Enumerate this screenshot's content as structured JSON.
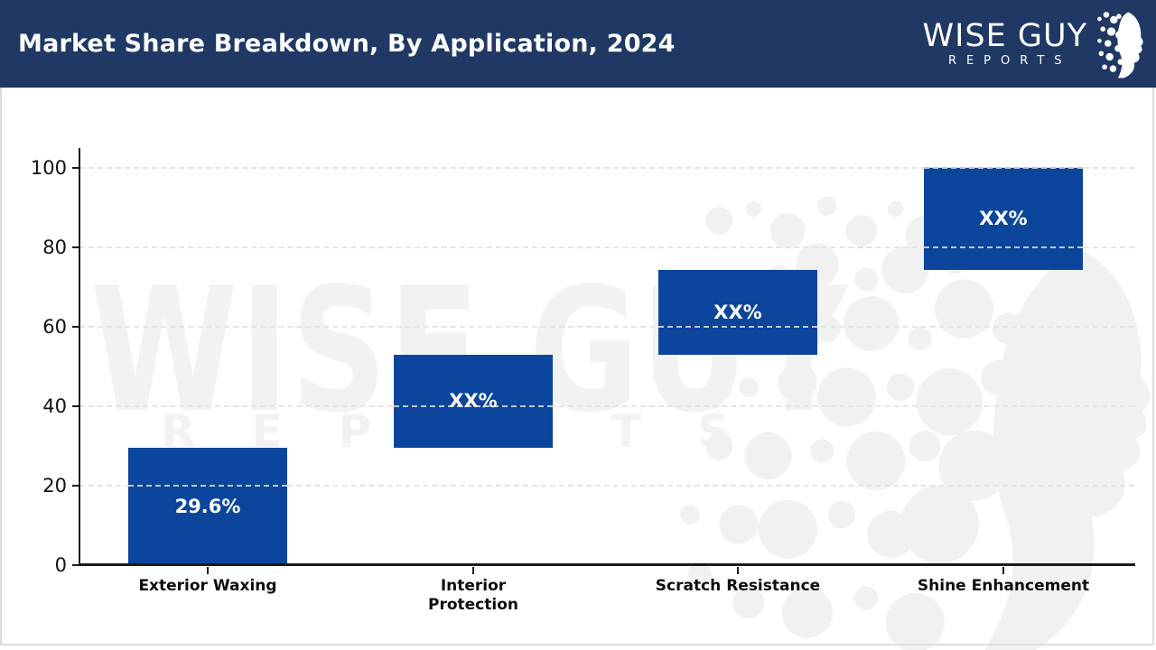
{
  "header": {
    "title": "Market Share Breakdown, By Application, 2024",
    "bg_color": "#1f3864",
    "logo": {
      "line1": "WISE GUY",
      "line2": "REPORTS"
    }
  },
  "watermark": {
    "line1": "WISE GUY",
    "line2": "REPORTS"
  },
  "chart_data": {
    "type": "bar",
    "subtype": "waterfall",
    "title": "Market Share Breakdown, By Application, 2024",
    "categories": [
      "Exterior Waxing",
      "Interior\nProtection",
      "Scratch Resistance",
      "Shine Enhancement"
    ],
    "segments": [
      {
        "category": "Exterior Waxing",
        "start": 0,
        "end": 29.6,
        "label": "29.6%"
      },
      {
        "category": "Interior Protection",
        "start": 29.6,
        "end": 53.0,
        "label": "XX%"
      },
      {
        "category": "Scratch Resistance",
        "start": 53.0,
        "end": 74.4,
        "label": "XX%"
      },
      {
        "category": "Shine Enhancement",
        "start": 74.4,
        "end": 100,
        "label": "XX%"
      }
    ],
    "xlabel": "",
    "ylabel": "",
    "ylim": [
      0,
      105
    ],
    "yticks": [
      0,
      20,
      40,
      60,
      80,
      100
    ],
    "grid": "horizontal dashed",
    "legend": "none",
    "bar_color": "#0b459c",
    "bar_label_color": "#ffffff"
  }
}
